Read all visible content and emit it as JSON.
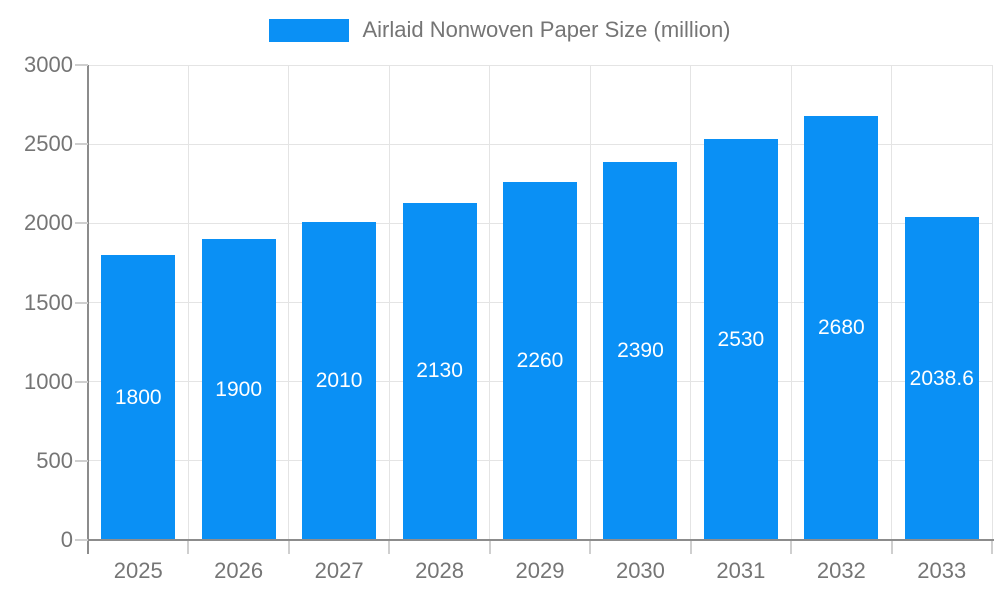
{
  "chart_data": {
    "type": "bar",
    "title": "",
    "legend": {
      "label": "Airlaid Nonwoven Paper Size (million)",
      "position": "top"
    },
    "categories": [
      "2025",
      "2026",
      "2027",
      "2028",
      "2029",
      "2030",
      "2031",
      "2032",
      "2033"
    ],
    "series": [
      {
        "name": "Airlaid Nonwoven Paper Size (million)",
        "values": [
          1800,
          1900,
          2010,
          2130,
          2260,
          2390,
          2530,
          2680,
          2038.6
        ]
      }
    ],
    "bar_labels": [
      "1800",
      "1900",
      "2010",
      "2130",
      "2260",
      "2390",
      "2530",
      "2680",
      "2038.6"
    ],
    "ylim": [
      0,
      3000
    ],
    "ytick_step": 500,
    "ytick_labels": [
      "0",
      "500",
      "1000",
      "1500",
      "2000",
      "2500",
      "3000"
    ],
    "grid": true,
    "colors": {
      "bar": "#0A90F5",
      "bar_label_text": "#FFFFFF",
      "axis_text": "#757575",
      "gridline": "#E4E4E4",
      "tick": "#CFCFCF",
      "axis_line": "#8C8C8C",
      "background": "#FFFFFF"
    }
  }
}
